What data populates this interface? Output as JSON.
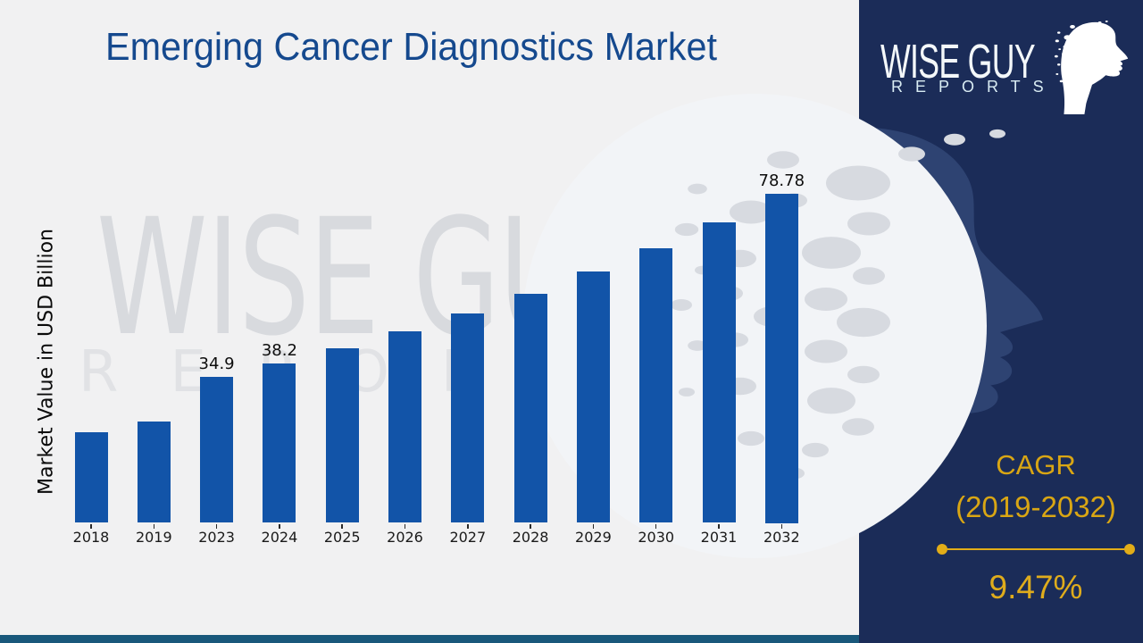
{
  "title": "Emerging Cancer Diagnostics Market",
  "ylabel": "Market Value in USD Billion",
  "logo": {
    "line1": "WISE GUY",
    "line2": "REPORTS",
    "icon": "face-profile-dots-icon"
  },
  "watermark": {
    "line1": "WISE GUY",
    "line2": "REPORTS",
    "icon": "face-profile-dots-icon"
  },
  "cagr": {
    "heading": "CAGR",
    "range": "(2019-2032)",
    "value": "9.47%"
  },
  "chart_data": {
    "type": "bar",
    "title": "Emerging Cancer Diagnostics Market",
    "xlabel": "",
    "ylabel": "Market Value in USD Billion",
    "categories": [
      "2018",
      "2019",
      "2023",
      "2024",
      "2025",
      "2026",
      "2027",
      "2028",
      "2029",
      "2030",
      "2031",
      "2032"
    ],
    "values": [
      21.7,
      24.3,
      34.9,
      38.2,
      41.8,
      45.8,
      50.1,
      54.9,
      60.1,
      65.8,
      72.0,
      78.78
    ],
    "bar_labels": [
      "",
      "",
      "34.9",
      "38.2",
      "",
      "",
      "",
      "",
      "",
      "",
      "",
      "78.78"
    ],
    "ylim": [
      0,
      85
    ],
    "grid": false,
    "legend": "none",
    "bar_color": "#1254A8"
  },
  "colors": {
    "background": "#F1F1F2",
    "panel_navy": "#1B2C58",
    "bar_blue": "#1254A8",
    "accent_gold": "#D9A614",
    "title_blue": "#15498E",
    "bottom_strip_teal": "#19587B"
  }
}
